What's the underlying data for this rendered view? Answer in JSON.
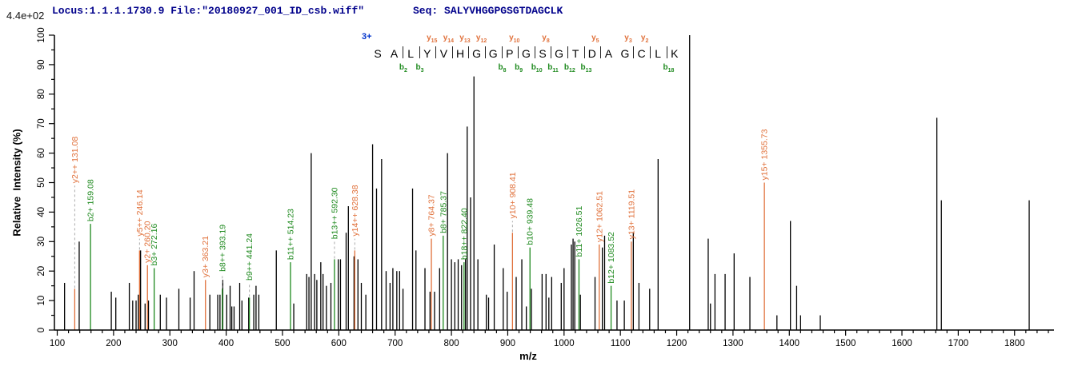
{
  "header": {
    "locus_file": "Locus:1.1.1.1730.9 File:\"20180927_001_ID_csb.wiff\"",
    "seq_label": "Seq:",
    "sequence": "SALYVHGGPGSGTDAGCLK"
  },
  "scale_note": "4.4e+02",
  "axis_titles": {
    "x": "m/z",
    "y": "Relative  Intensity (%)"
  },
  "colors": {
    "y_ion": "#e0703a",
    "b_ion": "#1f8a1f",
    "peak": "#000000",
    "header_text": "#00008b",
    "charge": "#0033cc",
    "axis": "#000000",
    "dash_connector": "#aaaaaa"
  },
  "sequence_ladder": {
    "precursor_charge": "3+",
    "residues": [
      "S",
      "A",
      "L",
      "Y",
      "V",
      "H",
      "G",
      "G",
      "P",
      "G",
      "S",
      "G",
      "T",
      "D",
      "A",
      "G",
      "C",
      "L",
      "K"
    ],
    "cleavages": [
      {
        "after": 2,
        "b": "b2"
      },
      {
        "after": 3,
        "b": "b3"
      },
      {
        "after": 4,
        "y": "y15"
      },
      {
        "after": 5,
        "y": "y14"
      },
      {
        "after": 6,
        "y": "y13"
      },
      {
        "after": 7,
        "y": "y12"
      },
      {
        "after": 8,
        "b": "b8"
      },
      {
        "after": 9,
        "y": "y10",
        "b": "b9"
      },
      {
        "after": 10,
        "b": "b10"
      },
      {
        "after": 11,
        "y": "y8",
        "b": "b11"
      },
      {
        "after": 12,
        "b": "b12"
      },
      {
        "after": 13,
        "b": "b13"
      },
      {
        "after": 14,
        "y": "y5"
      },
      {
        "after": 16,
        "y": "y3"
      },
      {
        "after": 17,
        "y": "y2"
      },
      {
        "after": 18,
        "b": "b18"
      }
    ]
  },
  "chart_data": {
    "type": "bar",
    "subtype": "ms2-fragment-spectrum",
    "title": "",
    "xlabel": "m/z",
    "ylabel": "Relative  Intensity (%)",
    "x_axis": {
      "min": 95,
      "max": 1870,
      "major_tick_step": 100,
      "minor_tick_step": 20,
      "first_label": 100,
      "last_label": 1800
    },
    "y_axis": {
      "min": 0,
      "max": 100,
      "major_tick_step": 10,
      "minor_tick_step": 5
    },
    "y_ion_peaks": [
      {
        "label": "y2++",
        "mz": 131.08,
        "intensity": 14,
        "label_h": 49
      },
      {
        "label": "y5++",
        "mz": 246.14,
        "intensity": 27,
        "label_h": 31
      },
      {
        "label": "y2+",
        "mz": 260.2,
        "intensity": 22
      },
      {
        "label": "y3+",
        "mz": 363.21,
        "intensity": 17
      },
      {
        "label": "y14++",
        "mz": 628.38,
        "intensity": 27,
        "label_h": 31
      },
      {
        "label": "y8+",
        "mz": 764.37,
        "intensity": 31
      },
      {
        "label": "y10+",
        "mz": 908.41,
        "intensity": 33,
        "label_h": 37
      },
      {
        "label": "y12+",
        "mz": 1062.51,
        "intensity": 29
      },
      {
        "label": "y13+",
        "mz": 1119.51,
        "intensity": 30
      },
      {
        "label": "y15+",
        "mz": 1355.73,
        "intensity": 50
      }
    ],
    "b_ion_peaks": [
      {
        "label": "b2+",
        "mz": 159.08,
        "intensity": 36
      },
      {
        "label": "b3+",
        "mz": 272.16,
        "intensity": 21
      },
      {
        "label": "b8++",
        "mz": 393.19,
        "intensity": 14,
        "label_h": 19
      },
      {
        "label": "b9++",
        "mz": 441.24,
        "intensity": 11,
        "label_h": 16
      },
      {
        "label": "b11++",
        "mz": 514.23,
        "intensity": 23
      },
      {
        "label": "b13++",
        "mz": 592.3,
        "intensity": 24,
        "label_h": 30
      },
      {
        "label": "b8+",
        "mz": 785.37,
        "intensity": 32
      },
      {
        "label": "b18++",
        "mz": 822.4,
        "intensity": 23
      },
      {
        "label": "b10+",
        "mz": 939.48,
        "intensity": 28
      },
      {
        "label": "b11+",
        "mz": 1026.51,
        "intensity": 24
      },
      {
        "label": "b12+",
        "mz": 1083.52,
        "intensity": 15
      }
    ],
    "peaks_unlabeled": [
      [
        113,
        16
      ],
      [
        139,
        30
      ],
      [
        196,
        13
      ],
      [
        204,
        11
      ],
      [
        228,
        16
      ],
      [
        234,
        10
      ],
      [
        240,
        10
      ],
      [
        244,
        12
      ],
      [
        248,
        27
      ],
      [
        256,
        9
      ],
      [
        262,
        10
      ],
      [
        283,
        12
      ],
      [
        294,
        11
      ],
      [
        316,
        14
      ],
      [
        336,
        11
      ],
      [
        343,
        20
      ],
      [
        371,
        12
      ],
      [
        385,
        12
      ],
      [
        389,
        12
      ],
      [
        394,
        17
      ],
      [
        401,
        12
      ],
      [
        407,
        15
      ],
      [
        410,
        8
      ],
      [
        414,
        8
      ],
      [
        424,
        16
      ],
      [
        428,
        10
      ],
      [
        440,
        11
      ],
      [
        449,
        12
      ],
      [
        453,
        15
      ],
      [
        458,
        12
      ],
      [
        489,
        27
      ],
      [
        520,
        9
      ],
      [
        543,
        19
      ],
      [
        547,
        18
      ],
      [
        551,
        60
      ],
      [
        557,
        19
      ],
      [
        561,
        17
      ],
      [
        568,
        23
      ],
      [
        572,
        19
      ],
      [
        578,
        15
      ],
      [
        586,
        16
      ],
      [
        599,
        24
      ],
      [
        603,
        24
      ],
      [
        613,
        33
      ],
      [
        617,
        42
      ],
      [
        627,
        25
      ],
      [
        634,
        24
      ],
      [
        640,
        16
      ],
      [
        648,
        12
      ],
      [
        660,
        63
      ],
      [
        667,
        48
      ],
      [
        676,
        58
      ],
      [
        684,
        20
      ],
      [
        691,
        16
      ],
      [
        696,
        21
      ],
      [
        703,
        20
      ],
      [
        708,
        20
      ],
      [
        714,
        14
      ],
      [
        731,
        48
      ],
      [
        737,
        27
      ],
      [
        753,
        21
      ],
      [
        762,
        13
      ],
      [
        770,
        13
      ],
      [
        779,
        21
      ],
      [
        793,
        60
      ],
      [
        800,
        24
      ],
      [
        806,
        23
      ],
      [
        812,
        24
      ],
      [
        818,
        22
      ],
      [
        825,
        24
      ],
      [
        828,
        69
      ],
      [
        834,
        45
      ],
      [
        840,
        86
      ],
      [
        847,
        24
      ],
      [
        862,
        12
      ],
      [
        866,
        11
      ],
      [
        876,
        29
      ],
      [
        892,
        21
      ],
      [
        899,
        13
      ],
      [
        915,
        18
      ],
      [
        925,
        24
      ],
      [
        933,
        8
      ],
      [
        942,
        14
      ],
      [
        961,
        19
      ],
      [
        968,
        19
      ],
      [
        973,
        11
      ],
      [
        978,
        18
      ],
      [
        995,
        16
      ],
      [
        1000,
        21
      ],
      [
        1013,
        29
      ],
      [
        1016,
        31
      ],
      [
        1019,
        30
      ],
      [
        1029,
        12
      ],
      [
        1055,
        18
      ],
      [
        1068,
        28
      ],
      [
        1072,
        32
      ],
      [
        1094,
        10
      ],
      [
        1107,
        10
      ],
      [
        1123,
        33
      ],
      [
        1133,
        16
      ],
      [
        1152,
        14
      ],
      [
        1167,
        58
      ],
      [
        1223,
        100
      ],
      [
        1256,
        31
      ],
      [
        1260,
        9
      ],
      [
        1268,
        19
      ],
      [
        1286,
        19
      ],
      [
        1302,
        26
      ],
      [
        1330,
        18
      ],
      [
        1378,
        5
      ],
      [
        1402,
        37
      ],
      [
        1413,
        15
      ],
      [
        1420,
        5
      ],
      [
        1455,
        5
      ],
      [
        1662,
        72
      ],
      [
        1670,
        44
      ],
      [
        1826,
        44
      ]
    ]
  }
}
